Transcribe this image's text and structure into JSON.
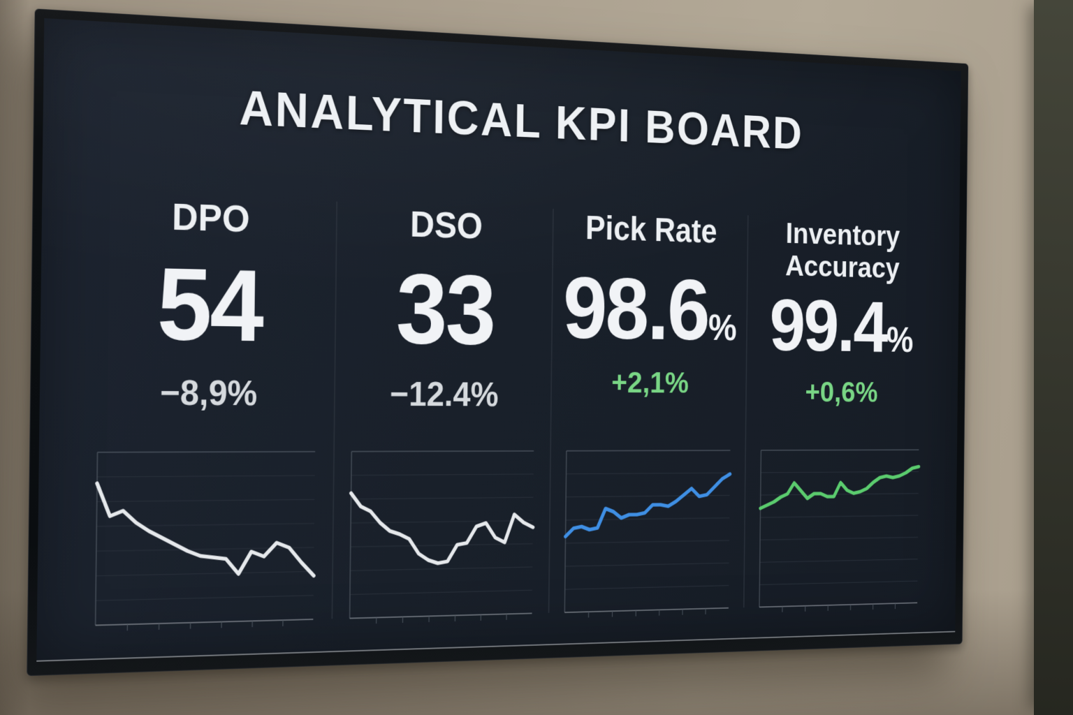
{
  "title": "ANALYTICAL KPI BOARD",
  "kpis": [
    {
      "name": "DPO",
      "value": "54",
      "value_suffix": "",
      "delta": "−8,9%",
      "delta_color": "#d6dade"
    },
    {
      "name": "DSO",
      "value": "33",
      "value_suffix": "",
      "delta": "−12.4%",
      "delta_color": "#d6dade"
    },
    {
      "name": "Pick Rate",
      "value": "98.6",
      "value_suffix": "%",
      "delta": "+2,1%",
      "delta_color": "#79d685"
    },
    {
      "name": "Inventory Accuracy",
      "value": "99.4",
      "value_suffix": "%",
      "delta": "+0,6%",
      "delta_color": "#79d685"
    }
  ],
  "chart_data": [
    {
      "type": "line",
      "title": "DPO trend sparkline",
      "trend": "down",
      "values": [
        82,
        63,
        66,
        59,
        54,
        50,
        46,
        42,
        39,
        38,
        37,
        28,
        41,
        38,
        46,
        43,
        34,
        26
      ],
      "ylim": [
        0,
        100
      ],
      "xlabel": "",
      "ylabel": "",
      "tick_labels": "none",
      "gridlines": 6,
      "legend": "none",
      "color": "#e6e9ec"
    },
    {
      "type": "line",
      "title": "DSO trend sparkline",
      "trend": "down-then-recover",
      "values": [
        75,
        67,
        64,
        57,
        52,
        50,
        47,
        38,
        34,
        32,
        33,
        43,
        44,
        54,
        56,
        47,
        44,
        61,
        56,
        53
      ],
      "ylim": [
        0,
        100
      ],
      "xlabel": "",
      "ylabel": "",
      "tick_labels": "none",
      "gridlines": 6,
      "legend": "none",
      "color": "#e6e9ec"
    },
    {
      "type": "line",
      "title": "Pick Rate trend sparkline",
      "trend": "up",
      "values": [
        47,
        52,
        53,
        51,
        52,
        64,
        62,
        58,
        60,
        60,
        61,
        66,
        66,
        65,
        68,
        72,
        76,
        71,
        72,
        77,
        82,
        85
      ],
      "ylim": [
        0,
        100
      ],
      "xlabel": "",
      "ylabel": "",
      "tick_labels": "none",
      "gridlines": 6,
      "legend": "none",
      "color": "#3f8fe4"
    },
    {
      "type": "line",
      "title": "Inventory Accuracy trend sparkline",
      "trend": "up",
      "values": [
        63,
        65,
        67,
        70,
        72,
        79,
        74,
        69,
        72,
        72,
        70,
        70,
        79,
        74,
        72,
        73,
        75,
        79,
        82,
        83,
        82,
        83,
        85,
        88,
        89
      ],
      "ylim": [
        0,
        100
      ],
      "xlabel": "",
      "ylabel": "",
      "tick_labels": "none",
      "gridlines": 6,
      "legend": "none",
      "color": "#5bcc6e"
    }
  ],
  "colors": {
    "screen_bg": "#19202a",
    "text": "#eef1f4",
    "delta_negative_neutral": "#d6dade",
    "delta_positive_green": "#79d685",
    "line_white": "#e6e9ec",
    "line_blue": "#3f8fe4",
    "line_green": "#5bcc6e",
    "grid": "#272e38",
    "axis": "#4a525c",
    "axis_bottom": "#7c828a"
  }
}
